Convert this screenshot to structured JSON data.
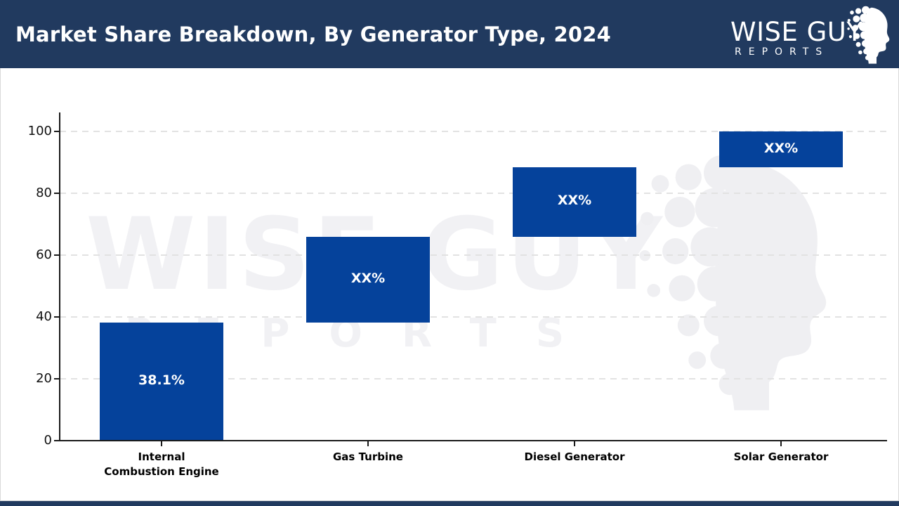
{
  "header": {
    "title": "Market Share Breakdown, By Generator Type, 2024",
    "logo": {
      "line1": "WISE GUY",
      "line2": "REPORTS"
    }
  },
  "watermark": {
    "line1": "WISE GUY",
    "line2": "REPORTS"
  },
  "colors": {
    "header_bg": "#213a5f",
    "bar": "#05429b",
    "grid": "#e2e2e2",
    "axis": "#1a1a1a",
    "bar_label": "#ffffff",
    "watermark": "#f1f1f4"
  },
  "chart_data": {
    "type": "bar",
    "variant": "floating-waterfall",
    "title": "Market Share Breakdown, By Generator Type, 2024",
    "categories": [
      "Internal\nCombustion Engine",
      "Gas Turbine",
      "Diesel Generator",
      "Solar Generator"
    ],
    "segments": [
      {
        "category": "Internal Combustion Engine",
        "start": 0,
        "end": 38.1,
        "label": "38.1%"
      },
      {
        "category": "Gas Turbine",
        "start": 38.1,
        "end": 66.0,
        "label": "XX%"
      },
      {
        "category": "Diesel Generator",
        "start": 66.0,
        "end": 88.4,
        "label": "XX%"
      },
      {
        "category": "Solar Generator",
        "start": 88.4,
        "end": 100,
        "label": "XX%"
      }
    ],
    "ylim": [
      0,
      100
    ],
    "yticks": [
      0,
      20,
      40,
      60,
      80,
      100
    ],
    "xlabel": "",
    "ylabel": "",
    "grid": "dashed-horizontal",
    "legend": "none"
  }
}
